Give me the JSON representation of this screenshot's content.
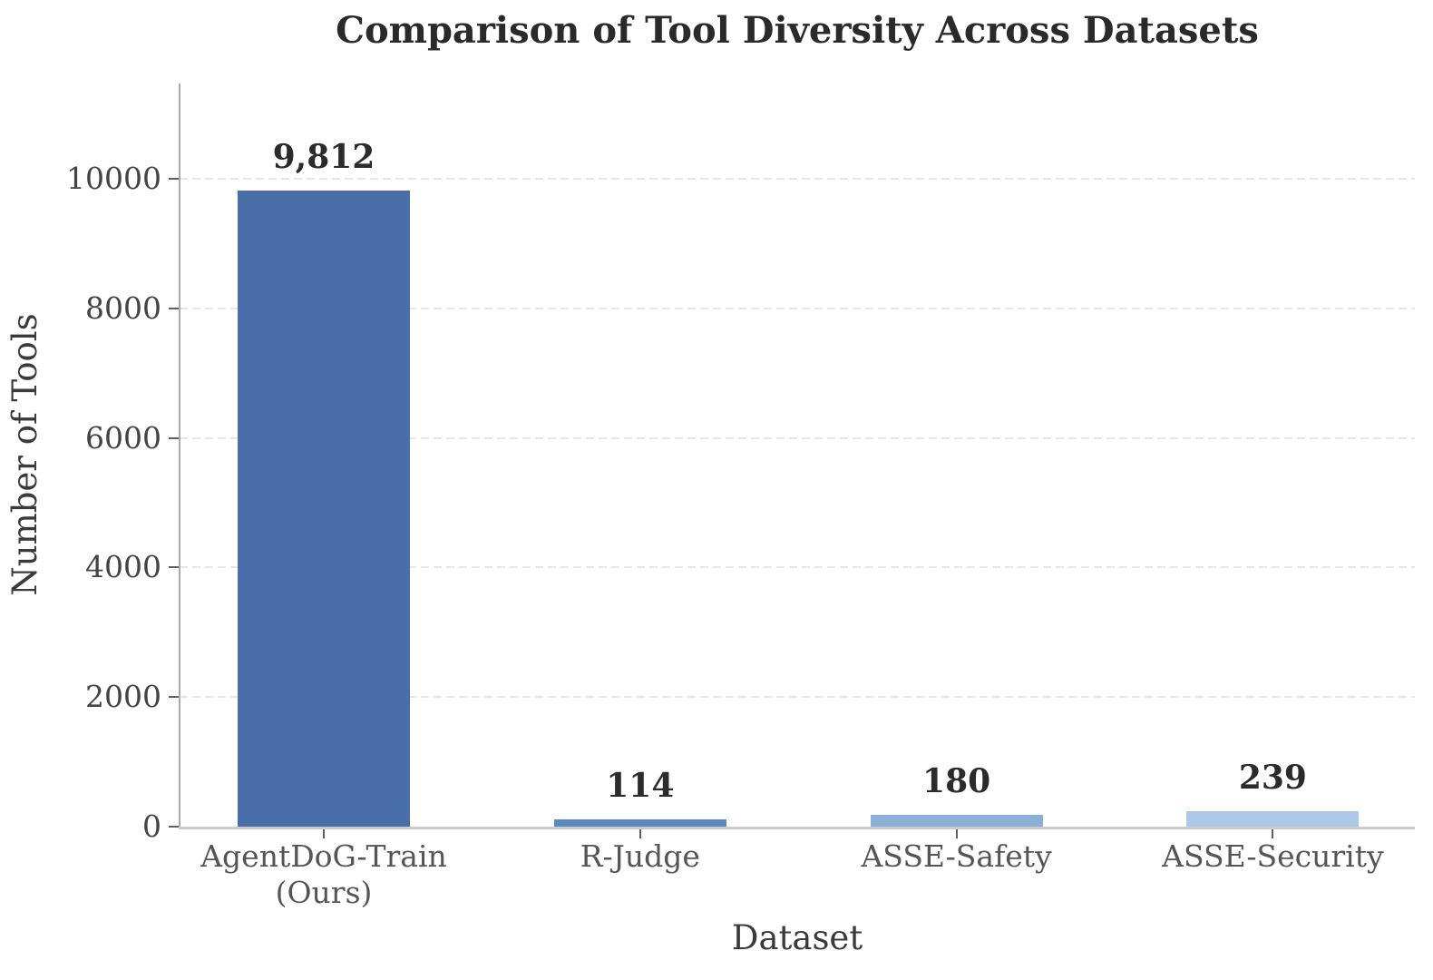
{
  "chart_data": {
    "type": "bar",
    "title": "Comparison of Tool Diversity Across Datasets",
    "xlabel": "Dataset",
    "ylabel": "Number of Tools",
    "categories": [
      "AgentDoG-Train\n(Ours)",
      "R-Judge",
      "ASSE-Safety",
      "ASSE-Security"
    ],
    "values": [
      9812,
      114,
      180,
      239
    ],
    "value_labels": [
      "9,812",
      "114",
      "180",
      "239"
    ],
    "bar_colors": [
      "#4a6fa8",
      "#5d87c1",
      "#8bafd8",
      "#adc9e6"
    ],
    "yticks": [
      0,
      2000,
      4000,
      6000,
      8000,
      10000
    ],
    "ytick_labels": [
      "0",
      "2000",
      "4000",
      "6000",
      "8000",
      "10000"
    ],
    "ylim": [
      0,
      11470
    ],
    "grid": {
      "axis": "y",
      "style": "dashed",
      "color": "#e7e7e7"
    },
    "legend": null,
    "background_color": "#ffffff"
  }
}
